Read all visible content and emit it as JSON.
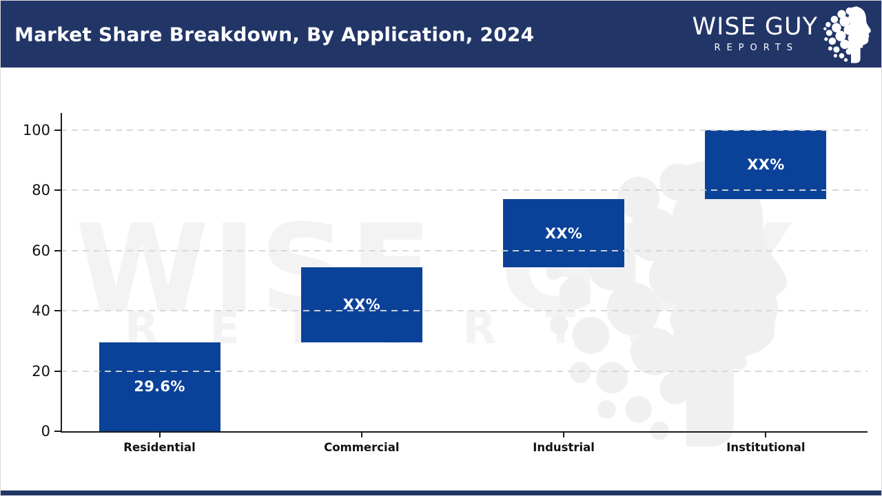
{
  "header": {
    "title": "Market Share Breakdown, By Application, 2024",
    "background_color": "#213567",
    "logo": {
      "line1": "WISE GUY",
      "line2": "REPORTS",
      "icon": "dotted-head-profile-icon"
    }
  },
  "watermark": {
    "line1": "WISE GUY",
    "line2": "REPORTS",
    "icon": "dotted-head-profile-icon"
  },
  "chart_data": {
    "type": "bar",
    "subtype": "waterfall-floating-bars",
    "title": "Market Share Breakdown, By Application, 2024",
    "categories": [
      "Residential",
      "Commercial",
      "Industrial",
      "Institutional"
    ],
    "segments": [
      {
        "category": "Residential",
        "start": 0,
        "end": 29.6,
        "label": "29.6%"
      },
      {
        "category": "Commercial",
        "start": 29.6,
        "end": 54.4,
        "label": "XX%"
      },
      {
        "category": "Industrial",
        "start": 54.4,
        "end": 77,
        "label": "XX%"
      },
      {
        "category": "Institutional",
        "start": 77,
        "end": 100,
        "label": "XX%"
      }
    ],
    "xlabel": "",
    "ylabel": "",
    "ylim": [
      0,
      105
    ],
    "yticks": [
      0,
      20,
      40,
      60,
      80,
      100
    ],
    "grid": "horizontal-dashed",
    "legend": "none",
    "bar_color": "#0B4299",
    "bar_label_color": "#ffffff",
    "grid_color": "#d6d6d6",
    "axis_color": "#1a1a1a",
    "tick_label_color": "#111111"
  }
}
